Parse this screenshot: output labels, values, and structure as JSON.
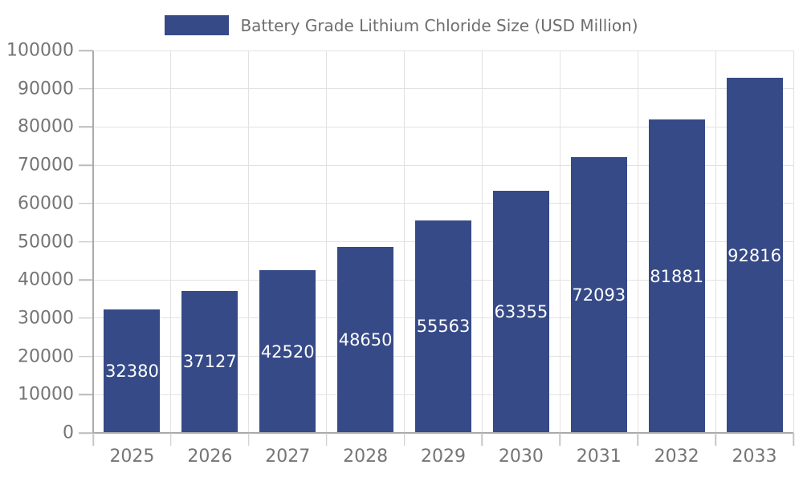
{
  "legend": {
    "label": "Battery Grade Lithium Chloride Size (USD Million)"
  },
  "chart_data": {
    "type": "bar",
    "title": "Battery Grade Lithium Chloride Size (USD Million)",
    "series_name": "Battery Grade Lithium Chloride Size (USD Million)",
    "categories": [
      "2025",
      "2026",
      "2027",
      "2028",
      "2029",
      "2030",
      "2031",
      "2032",
      "2033"
    ],
    "values": [
      32380,
      37127,
      42520,
      48650,
      55563,
      63355,
      72093,
      81881,
      92816
    ],
    "xlabel": "",
    "ylabel": "",
    "ylim": [
      0,
      100000
    ],
    "ytick_step": 10000,
    "yticks": [
      0,
      10000,
      20000,
      30000,
      40000,
      50000,
      60000,
      70000,
      80000,
      90000,
      100000
    ],
    "grid": true,
    "legend_position": "top",
    "bar_value_labels_inside": true
  },
  "colors": {
    "bar": "#364a87",
    "bar_value_text": "#ffffff",
    "gridline": "#e2e2e2",
    "axis_line": "#aaaaaa",
    "tick_label": "#757575",
    "legend_text": "#6e6e6e",
    "background": "#ffffff"
  }
}
